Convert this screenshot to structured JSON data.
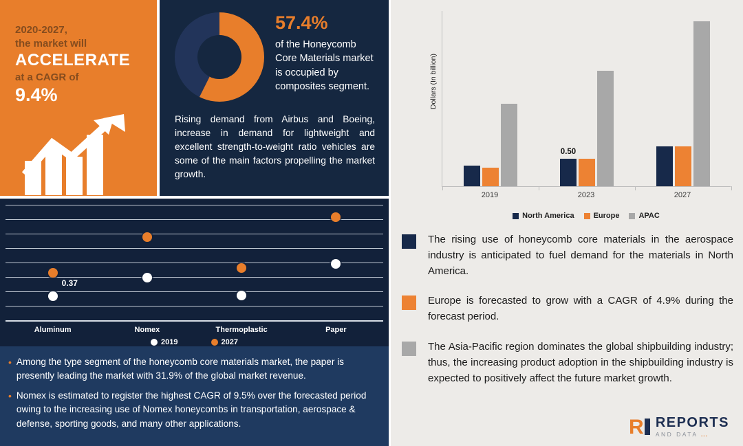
{
  "colors": {
    "orange": "#E87E2B",
    "navy": "#17294A",
    "navy_panel": "#152740",
    "donut_rest": "#22345A",
    "gray": "#A8A8A8"
  },
  "cagr_panel": {
    "line1": "2020-2027,",
    "line2": "the market will",
    "accelerate": "ACCELERATE",
    "line3": "at a CAGR of",
    "cagr_value": "9.4%"
  },
  "composites": {
    "percent": "57.4%",
    "donut_percent": 57.4,
    "description": "of the Honeycomb Core Materials market is occupied by composites segment.",
    "paragraph": "Rising demand from Airbus and Boeing, increase in demand for lightweight and excellent strength-to-weight ratio vehicles are some of the main factors propelling the market growth."
  },
  "chart_data": [
    {
      "name": "type-segment-dot-plot",
      "type": "scatter",
      "categories": [
        "Aluminum",
        "Nomex",
        "Thermoplastic",
        "Paper"
      ],
      "series": [
        {
          "name": "2019",
          "color": "#FFFFFF",
          "values": [
            0.37,
            0.66,
            0.39,
            0.88
          ]
        },
        {
          "name": "2027",
          "color": "#E87E2B",
          "values": [
            0.74,
            1.3,
            0.81,
            1.61
          ]
        }
      ],
      "annotations": [
        {
          "text": "0.37",
          "category": "Aluminum",
          "series": "2019"
        }
      ],
      "title": "",
      "xlabel": "",
      "ylabel": "",
      "ylim": [
        0,
        1.8
      ],
      "grid": true,
      "legend_position": "bottom"
    },
    {
      "name": "regional-market-bar-chart",
      "type": "bar",
      "categories": [
        "2019",
        "2023",
        "2027"
      ],
      "series": [
        {
          "name": "North America",
          "color": "#17294A",
          "values": [
            0.37,
            0.5,
            0.73
          ]
        },
        {
          "name": "Europe",
          "color": "#ED8233",
          "values": [
            0.34,
            0.5,
            0.73
          ]
        },
        {
          "name": "APAC",
          "color": "#A8A8A8",
          "values": [
            1.5,
            2.1,
            3.0
          ]
        }
      ],
      "annotations": [
        {
          "text": "0.50",
          "category": "2023",
          "series": "North America"
        }
      ],
      "title": "",
      "xlabel": "",
      "ylabel": "Dollars (In billion)",
      "ylim": [
        0,
        3.2
      ],
      "grid": false,
      "legend_position": "bottom"
    }
  ],
  "type_bullets": [
    "Among the type segment of the honeycomb core materials market, the paper is presently leading the market with 31.9% of the global market revenue.",
    "Nomex is estimated to register the highest CAGR of 9.5% over the forecasted period owing to the increasing use of Nomex honeycombs in transportation, aerospace & defense, sporting goods, and many other applications."
  ],
  "regional_insights": [
    {
      "color": "#17294A",
      "text": "The rising use of honeycomb core materials in the aerospace industry is anticipated to fuel demand for the materials in North America."
    },
    {
      "color": "#ED8233",
      "text": "Europe is forecasted to grow with a CAGR of 4.9% during the forecast period."
    },
    {
      "color": "#A8A8A8",
      "text": "The Asia-Pacific region dominates the global shipbuilding industry; thus, the increasing product adoption in the shipbuilding industry is expected to positively affect the future market growth."
    }
  ],
  "logo": {
    "name": "REPORTS",
    "sub": "AND DATA",
    "dots": "..."
  }
}
